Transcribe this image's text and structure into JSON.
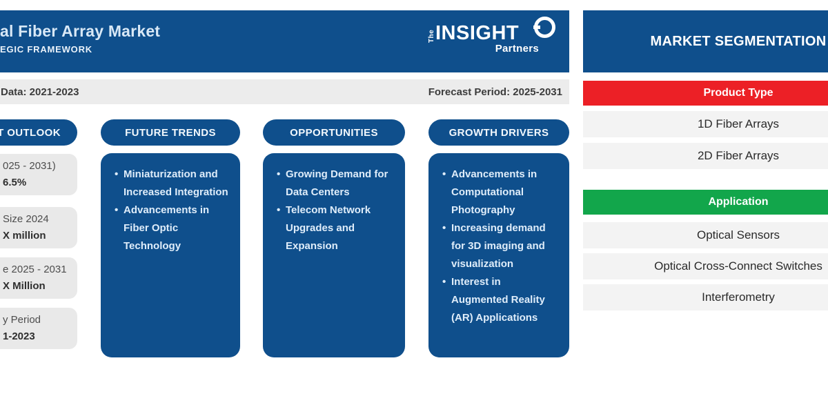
{
  "colors": {
    "primary_blue": "#0F4F8C",
    "accent_red": "#EC2026",
    "accent_green": "#12A64B",
    "sub_bar_gray": "#ECECEC",
    "info_box_gray": "#E9E9E9",
    "row_gray": "#F3F3F3"
  },
  "header": {
    "title": "al Fiber Array Market",
    "subtitle": "EGIC FRAMEWORK",
    "logo": {
      "the": "The",
      "insight": "INSIGHT",
      "partners": "Partners"
    }
  },
  "sub_bar": {
    "left_text": "Data: 2021-2023",
    "right_text": "Forecast Period: 2025-2031"
  },
  "outlook_column": {
    "header": "T OUTLOOK",
    "boxes": [
      {
        "line1": "025 - 2031)",
        "line2": "6.5%"
      },
      {
        "line1": "Size 2024",
        "line2": "X million"
      },
      {
        "line1": "e 2025 - 2031",
        "line2": "X Million"
      },
      {
        "line1": "y Period",
        "line2": "1-2023"
      }
    ]
  },
  "columns": [
    {
      "header": "FUTURE TRENDS",
      "bullets": [
        "Miniaturization and Increased Integration",
        "Advancements in Fiber Optic Technology"
      ]
    },
    {
      "header": "OPPORTUNITIES",
      "bullets": [
        "Growing Demand for Data Centers",
        "Telecom Network Upgrades and Expansion"
      ]
    },
    {
      "header": "GROWTH DRIVERS",
      "bullets": [
        "Advancements in Computational Photography",
        "Increasing demand for 3D imaging and visualization",
        "Interest in Augmented Reality (AR) Applications"
      ]
    }
  ],
  "segmentation": {
    "title": "MARKET SEGMENTATION",
    "groups": [
      {
        "label": "Product Type",
        "items": [
          "1D Fiber Arrays",
          "2D Fiber Arrays"
        ]
      },
      {
        "label": "Application",
        "items": [
          "Optical Sensors",
          "Optical Cross-Connect Switches",
          "Interferometry"
        ]
      }
    ]
  }
}
